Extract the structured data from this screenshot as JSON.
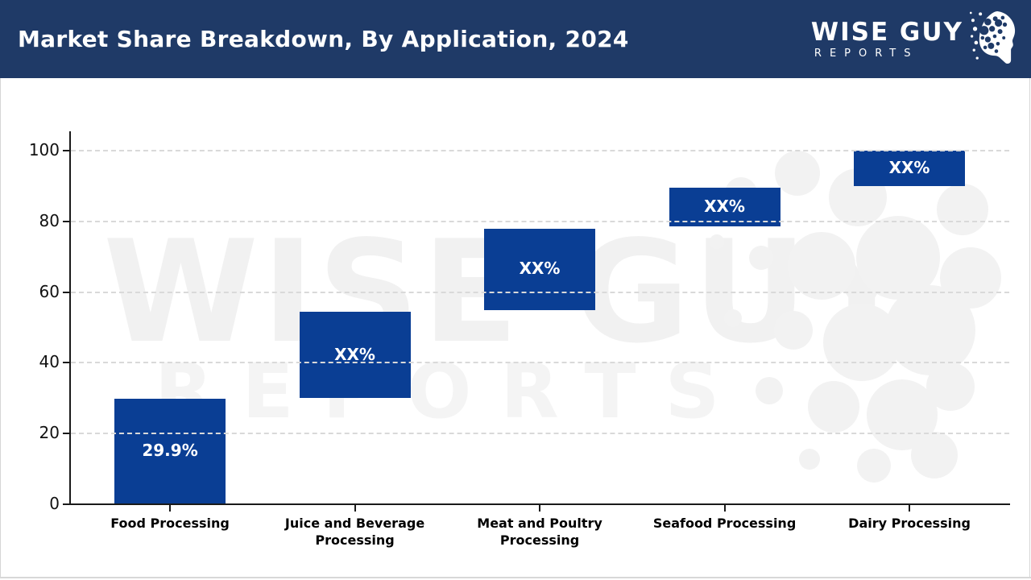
{
  "header": {
    "title": "Market Share Breakdown, By Application, 2024",
    "bg_color": "#1f3a67",
    "logo": {
      "wordmark": "WISE GUY",
      "subtext": "REPORTS",
      "icon": "dotted-head-profile-icon"
    }
  },
  "watermark": {
    "wordmark": "WISE GUY",
    "subtext": "REPORTS"
  },
  "chart_data": {
    "type": "bar",
    "subtype": "floating-waterfall",
    "title": "Market Share Breakdown, By Application, 2024",
    "categories": [
      "Food Processing",
      "Juice and Beverage Processing",
      "Meat and Poultry Processing",
      "Seafood Processing",
      "Dairy Processing"
    ],
    "series": [
      {
        "name": "Market Share (%)",
        "segments": [
          {
            "category": "Food Processing",
            "start": 0,
            "end": 29.9,
            "label": "29.9%"
          },
          {
            "category": "Juice and Beverage Processing",
            "start": 30,
            "end": 54.5,
            "label": "XX%"
          },
          {
            "category": "Meat and Poultry Processing",
            "start": 55,
            "end": 78,
            "label": "XX%"
          },
          {
            "category": "Seafood Processing",
            "start": 78.5,
            "end": 89.5,
            "label": "XX%"
          },
          {
            "category": "Dairy Processing",
            "start": 90,
            "end": 100,
            "label": "XX%"
          }
        ]
      }
    ],
    "xlabel": "",
    "ylabel": "",
    "ylim": [
      0,
      105
    ],
    "yticks": [
      0,
      20,
      40,
      60,
      80,
      100
    ],
    "grid": "horizontal-dashed",
    "legend": "none",
    "bar_color": "#0a3e94",
    "bar_label_color": "#ffffff",
    "gridline_color": "#d9d9d9",
    "axis_color": "#1a1a1a"
  }
}
